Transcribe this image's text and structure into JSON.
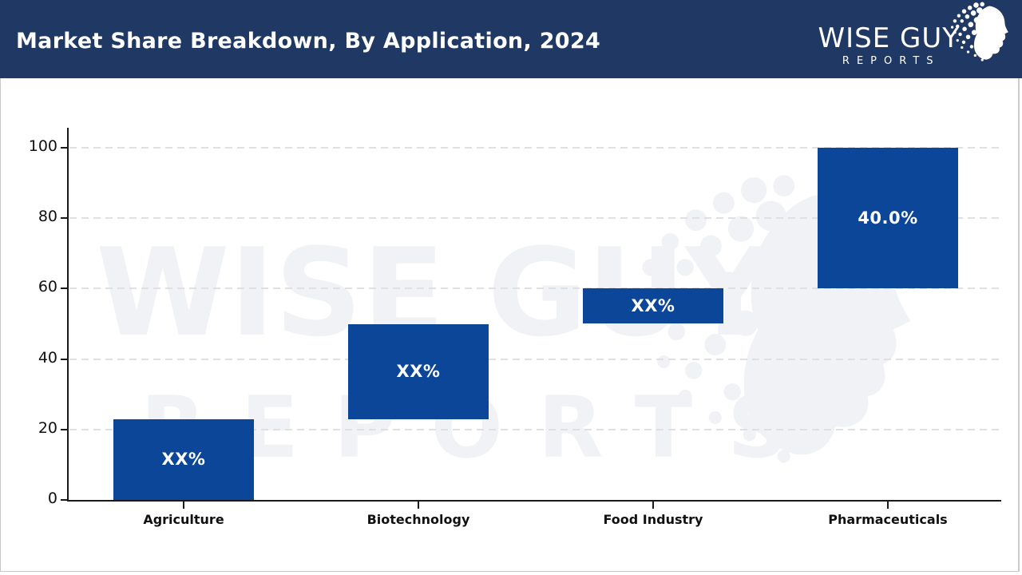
{
  "header": {
    "title": "Market Share Breakdown, By Application, 2024",
    "logo": {
      "wordmark": "WISE GUY",
      "subtext": "REPORTS"
    }
  },
  "watermark": {
    "line1": "WISE GUY",
    "line2": "REPORTS"
  },
  "colors": {
    "header_bg": "#1f3864",
    "bar_fill": "#0c4699",
    "bar_label": "#ffffff",
    "gridline": "#e0e0e2",
    "axis": "#1a1a1a",
    "tick_label": "#111111",
    "watermark": "#f1f2f5",
    "logo_fg": "#ffffff"
  },
  "chart_data": {
    "type": "bar",
    "subtype": "floating-waterfall",
    "title": "Market Share Breakdown, By Application, 2024",
    "categories": [
      "Agriculture",
      "Biotechnology",
      "Food Industry",
      "Pharmaceuticals"
    ],
    "segments": [
      {
        "category": "Agriculture",
        "start": 0,
        "end": 23,
        "value": 23,
        "label": "XX%"
      },
      {
        "category": "Biotechnology",
        "start": 23,
        "end": 50,
        "value": 27,
        "label": "XX%"
      },
      {
        "category": "Food Industry",
        "start": 50,
        "end": 60,
        "value": 10,
        "label": "XX%"
      },
      {
        "category": "Pharmaceuticals",
        "start": 60,
        "end": 100,
        "value": 40,
        "label": "40.0%"
      }
    ],
    "y_ticks": [
      0,
      20,
      40,
      60,
      80,
      100
    ],
    "ylim": [
      0,
      105
    ],
    "xlabel": "",
    "ylabel": "",
    "grid": "horizontal-dashed",
    "legend": "none",
    "bar_color": "#0c4699"
  }
}
